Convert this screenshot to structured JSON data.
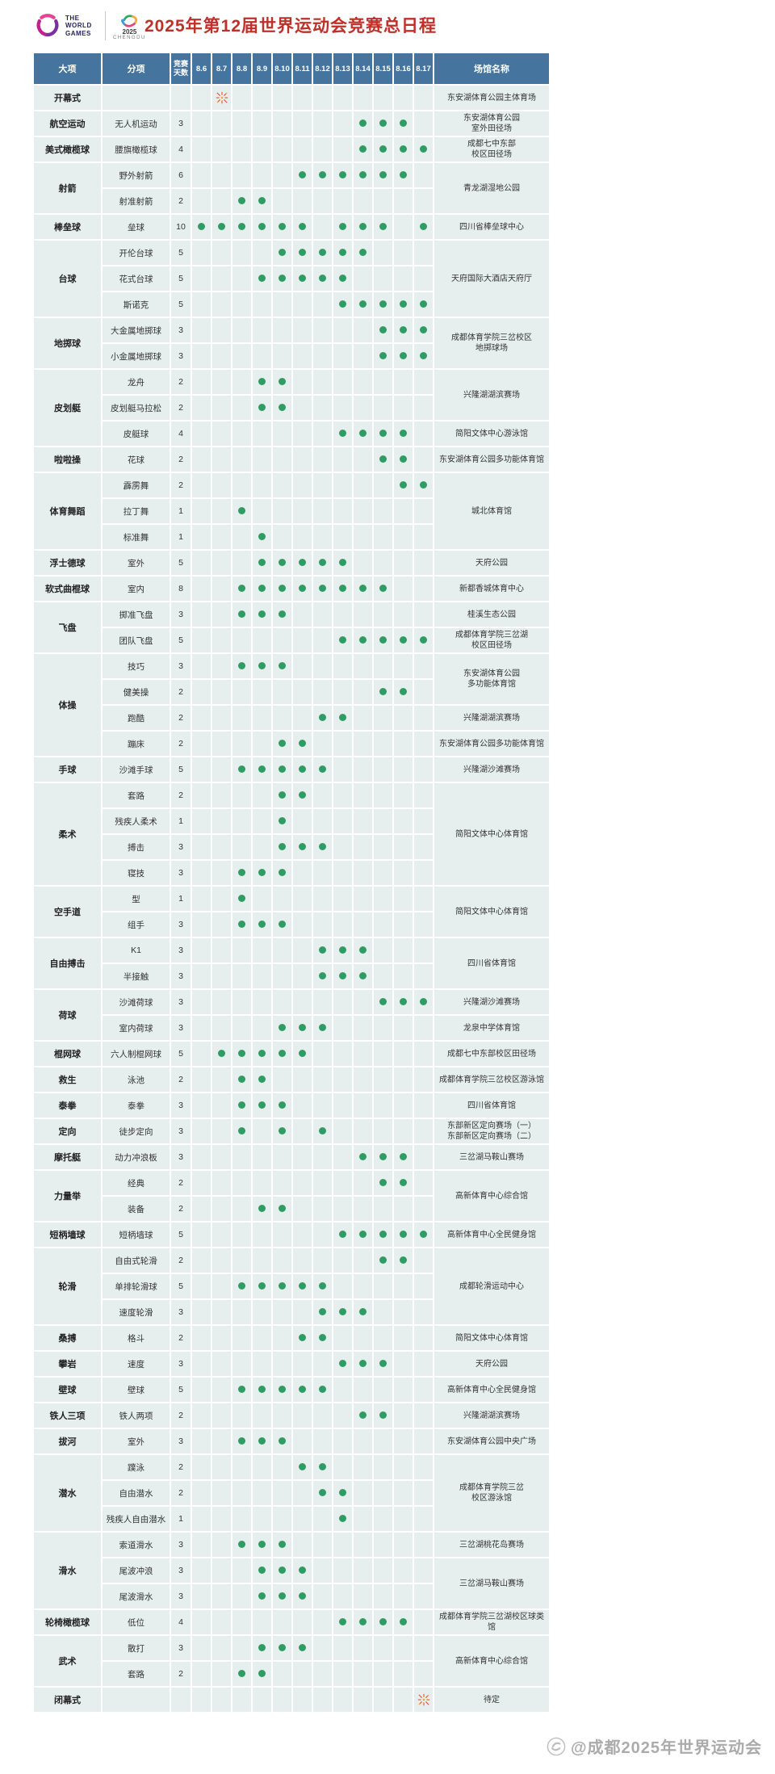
{
  "page": {
    "title": "2025年第12届世界运动会竞赛总日程",
    "watermark": "@成都2025年世界运动会",
    "logos": {
      "world_games": "THE WORLD GAMES",
      "chengdu_year": "2025",
      "chengdu_city": "CHENGDU"
    }
  },
  "table": {
    "headers": {
      "sport": "大项",
      "discipline": "分项",
      "days": "竞赛天数",
      "venue": "场馆名称"
    },
    "dates": [
      "8.6",
      "8.7",
      "8.8",
      "8.9",
      "8.10",
      "8.11",
      "8.12",
      "8.13",
      "8.14",
      "8.15",
      "8.16",
      "8.17"
    ],
    "colors": {
      "header_bg": "#45749E",
      "cell_bg": "#E6EFEE",
      "dot": "#2F9D63",
      "title_red": "#BF3028",
      "fireworks": "#E2582A"
    },
    "groups": [
      {
        "name": "开幕式",
        "rows": [
          {
            "sub": "",
            "days": "",
            "dots": [],
            "fireworks": "8.7"
          }
        ],
        "venues": [
          {
            "text": "东安湖体育公园主体育场",
            "span": 1
          }
        ]
      },
      {
        "name": "航空运动",
        "rows": [
          {
            "sub": "无人机运动",
            "days": "3",
            "dots": [
              "8.14",
              "8.15",
              "8.16"
            ]
          }
        ],
        "venues": [
          {
            "text": "东安湖体育公园\n室外田径场",
            "span": 1
          }
        ]
      },
      {
        "name": "美式橄榄球",
        "rows": [
          {
            "sub": "腰旗橄榄球",
            "days": "4",
            "dots": [
              "8.14",
              "8.15",
              "8.16",
              "8.17"
            ]
          }
        ],
        "venues": [
          {
            "text": "成都七中东部\n校区田径场",
            "span": 1
          }
        ]
      },
      {
        "name": "射箭",
        "rows": [
          {
            "sub": "野外射箭",
            "days": "6",
            "dots": [
              "8.11",
              "8.12",
              "8.13",
              "8.14",
              "8.15",
              "8.16"
            ]
          },
          {
            "sub": "射准射箭",
            "days": "2",
            "dots": [
              "8.8",
              "8.9"
            ]
          }
        ],
        "venues": [
          {
            "text": "青龙湖湿地公园",
            "span": 2
          }
        ]
      },
      {
        "name": "棒垒球",
        "rows": [
          {
            "sub": "垒球",
            "days": "10",
            "dots": [
              "8.6",
              "8.7",
              "8.8",
              "8.9",
              "8.10",
              "8.11",
              "8.13",
              "8.14",
              "8.15",
              "8.17"
            ]
          }
        ],
        "venues": [
          {
            "text": "四川省棒垒球中心",
            "span": 1
          }
        ]
      },
      {
        "name": "台球",
        "rows": [
          {
            "sub": "开伦台球",
            "days": "5",
            "dots": [
              "8.10",
              "8.11",
              "8.12",
              "8.13",
              "8.14"
            ]
          },
          {
            "sub": "花式台球",
            "days": "5",
            "dots": [
              "8.9",
              "8.10",
              "8.11",
              "8.12",
              "8.13"
            ]
          },
          {
            "sub": "斯诺克",
            "days": "5",
            "dots": [
              "8.13",
              "8.14",
              "8.15",
              "8.16",
              "8.17"
            ]
          }
        ],
        "venues": [
          {
            "text": "天府国际大酒店天府厅",
            "span": 3
          }
        ]
      },
      {
        "name": "地掷球",
        "rows": [
          {
            "sub": "大金属地掷球",
            "days": "3",
            "dots": [
              "8.15",
              "8.16",
              "8.17"
            ]
          },
          {
            "sub": "小金属地掷球",
            "days": "3",
            "dots": [
              "8.15",
              "8.16",
              "8.17"
            ]
          }
        ],
        "venues": [
          {
            "text": "成都体育学院三岔校区\n地掷球场",
            "span": 2
          }
        ]
      },
      {
        "name": "皮划艇",
        "rows": [
          {
            "sub": "龙舟",
            "days": "2",
            "dots": [
              "8.9",
              "8.10"
            ]
          },
          {
            "sub": "皮划艇马拉松",
            "days": "2",
            "dots": [
              "8.9",
              "8.10"
            ]
          },
          {
            "sub": "皮艇球",
            "days": "4",
            "dots": [
              "8.13",
              "8.14",
              "8.15",
              "8.16"
            ]
          }
        ],
        "venues": [
          {
            "text": "兴隆湖湖滨赛场",
            "span": 2
          },
          {
            "text": "简阳文体中心游泳馆",
            "span": 1
          }
        ]
      },
      {
        "name": "啦啦操",
        "rows": [
          {
            "sub": "花球",
            "days": "2",
            "dots": [
              "8.15",
              "8.16"
            ]
          }
        ],
        "venues": [
          {
            "text": "东安湖体育公园多功能体育馆",
            "span": 1
          }
        ]
      },
      {
        "name": "体育舞蹈",
        "rows": [
          {
            "sub": "霹雳舞",
            "days": "2",
            "dots": [
              "8.16",
              "8.17"
            ]
          },
          {
            "sub": "拉丁舞",
            "days": "1",
            "dots": [
              "8.8"
            ]
          },
          {
            "sub": "标准舞",
            "days": "1",
            "dots": [
              "8.9"
            ]
          }
        ],
        "venues": [
          {
            "text": "城北体育馆",
            "span": 3
          }
        ]
      },
      {
        "name": "浮士德球",
        "rows": [
          {
            "sub": "室外",
            "days": "5",
            "dots": [
              "8.9",
              "8.10",
              "8.11",
              "8.12",
              "8.13"
            ]
          }
        ],
        "venues": [
          {
            "text": "天府公园",
            "span": 1
          }
        ]
      },
      {
        "name": "软式曲棍球",
        "rows": [
          {
            "sub": "室内",
            "days": "8",
            "dots": [
              "8.8",
              "8.9",
              "8.10",
              "8.11",
              "8.12",
              "8.13",
              "8.14",
              "8.15"
            ]
          }
        ],
        "venues": [
          {
            "text": "新都香城体育中心",
            "span": 1
          }
        ]
      },
      {
        "name": "飞盘",
        "rows": [
          {
            "sub": "掷准飞盘",
            "days": "3",
            "dots": [
              "8.8",
              "8.9",
              "8.10"
            ]
          },
          {
            "sub": "团队飞盘",
            "days": "5",
            "dots": [
              "8.13",
              "8.14",
              "8.15",
              "8.16",
              "8.17"
            ]
          }
        ],
        "venues": [
          {
            "text": "桂溪生态公园",
            "span": 1
          },
          {
            "text": "成都体育学院三岔湖\n校区田径场",
            "span": 1
          }
        ]
      },
      {
        "name": "体操",
        "rows": [
          {
            "sub": "技巧",
            "days": "3",
            "dots": [
              "8.8",
              "8.9",
              "8.10"
            ]
          },
          {
            "sub": "健美操",
            "days": "2",
            "dots": [
              "8.15",
              "8.16"
            ]
          },
          {
            "sub": "跑酷",
            "days": "2",
            "dots": [
              "8.12",
              "8.13"
            ]
          },
          {
            "sub": "蹦床",
            "days": "2",
            "dots": [
              "8.10",
              "8.11"
            ]
          }
        ],
        "venues": [
          {
            "text": "东安湖体育公园\n多功能体育馆",
            "span": 2
          },
          {
            "text": "兴隆湖湖滨赛场",
            "span": 1
          },
          {
            "text": "东安湖体育公园多功能体育馆",
            "span": 1
          }
        ]
      },
      {
        "name": "手球",
        "rows": [
          {
            "sub": "沙滩手球",
            "days": "5",
            "dots": [
              "8.8",
              "8.9",
              "8.10",
              "8.11",
              "8.12"
            ]
          }
        ],
        "venues": [
          {
            "text": "兴隆湖沙滩赛场",
            "span": 1
          }
        ]
      },
      {
        "name": "柔术",
        "rows": [
          {
            "sub": "套路",
            "days": "2",
            "dots": [
              "8.10",
              "8.11"
            ]
          },
          {
            "sub": "残疾人柔术",
            "days": "1",
            "dots": [
              "8.10"
            ]
          },
          {
            "sub": "搏击",
            "days": "3",
            "dots": [
              "8.10",
              "8.11",
              "8.12"
            ]
          },
          {
            "sub": "寝技",
            "days": "3",
            "dots": [
              "8.8",
              "8.9",
              "8.10"
            ]
          }
        ],
        "venues": [
          {
            "text": "简阳文体中心体育馆",
            "span": 4
          }
        ]
      },
      {
        "name": "空手道",
        "rows": [
          {
            "sub": "型",
            "days": "1",
            "dots": [
              "8.8"
            ]
          },
          {
            "sub": "组手",
            "days": "3",
            "dots": [
              "8.8",
              "8.9",
              "8.10"
            ]
          }
        ],
        "venues": [
          {
            "text": "简阳文体中心体育馆",
            "span": 2
          }
        ]
      },
      {
        "name": "自由搏击",
        "rows": [
          {
            "sub": "K1",
            "days": "3",
            "dots": [
              "8.12",
              "8.13",
              "8.14"
            ]
          },
          {
            "sub": "半接触",
            "days": "3",
            "dots": [
              "8.12",
              "8.13",
              "8.14"
            ]
          }
        ],
        "venues": [
          {
            "text": "四川省体育馆",
            "span": 2
          }
        ]
      },
      {
        "name": "荷球",
        "rows": [
          {
            "sub": "沙滩荷球",
            "days": "3",
            "dots": [
              "8.15",
              "8.16",
              "8.17"
            ]
          },
          {
            "sub": "室内荷球",
            "days": "3",
            "dots": [
              "8.10",
              "8.11",
              "8.12"
            ]
          }
        ],
        "venues": [
          {
            "text": "兴隆湖沙滩赛场",
            "span": 1
          },
          {
            "text": "龙泉中学体育馆",
            "span": 1
          }
        ]
      },
      {
        "name": "棍网球",
        "rows": [
          {
            "sub": "六人制棍网球",
            "days": "5",
            "dots": [
              "8.7",
              "8.8",
              "8.9",
              "8.10",
              "8.11"
            ]
          }
        ],
        "venues": [
          {
            "text": "成都七中东部校区田径场",
            "span": 1
          }
        ]
      },
      {
        "name": "救生",
        "rows": [
          {
            "sub": "泳池",
            "days": "2",
            "dots": [
              "8.8",
              "8.9"
            ]
          }
        ],
        "venues": [
          {
            "text": "成都体育学院三岔校区游泳馆",
            "span": 1
          }
        ]
      },
      {
        "name": "泰拳",
        "rows": [
          {
            "sub": "泰拳",
            "days": "3",
            "dots": [
              "8.8",
              "8.9",
              "8.10"
            ]
          }
        ],
        "venues": [
          {
            "text": "四川省体育馆",
            "span": 1
          }
        ]
      },
      {
        "name": "定向",
        "rows": [
          {
            "sub": "徒步定向",
            "days": "3",
            "dots": [
              "8.8",
              "8.10",
              "8.12"
            ]
          }
        ],
        "venues": [
          {
            "text": "东部新区定向赛场（一）\n东部新区定向赛场（二）",
            "span": 1
          }
        ]
      },
      {
        "name": "摩托艇",
        "rows": [
          {
            "sub": "动力冲浪板",
            "days": "3",
            "dots": [
              "8.14",
              "8.15",
              "8.16"
            ]
          }
        ],
        "venues": [
          {
            "text": "三岔湖马鞍山赛场",
            "span": 1
          }
        ]
      },
      {
        "name": "力量举",
        "rows": [
          {
            "sub": "经典",
            "days": "2",
            "dots": [
              "8.15",
              "8.16"
            ]
          },
          {
            "sub": "装备",
            "days": "2",
            "dots": [
              "8.9",
              "8.10"
            ]
          }
        ],
        "venues": [
          {
            "text": "高新体育中心综合馆",
            "span": 2
          }
        ]
      },
      {
        "name": "短柄墙球",
        "rows": [
          {
            "sub": "短柄墙球",
            "days": "5",
            "dots": [
              "8.13",
              "8.14",
              "8.15",
              "8.16",
              "8.17"
            ]
          }
        ],
        "venues": [
          {
            "text": "高新体育中心全民健身馆",
            "span": 1
          }
        ]
      },
      {
        "name": "轮滑",
        "rows": [
          {
            "sub": "自由式轮滑",
            "days": "2",
            "dots": [
              "8.15",
              "8.16"
            ]
          },
          {
            "sub": "单排轮滑球",
            "days": "5",
            "dots": [
              "8.8",
              "8.9",
              "8.10",
              "8.11",
              "8.12"
            ]
          },
          {
            "sub": "速度轮滑",
            "days": "3",
            "dots": [
              "8.12",
              "8.13",
              "8.14"
            ]
          }
        ],
        "venues": [
          {
            "text": "成都轮滑运动中心",
            "span": 3
          }
        ]
      },
      {
        "name": "桑搏",
        "rows": [
          {
            "sub": "格斗",
            "days": "2",
            "dots": [
              "8.11",
              "8.12"
            ]
          }
        ],
        "venues": [
          {
            "text": "简阳文体中心体育馆",
            "span": 1
          }
        ]
      },
      {
        "name": "攀岩",
        "rows": [
          {
            "sub": "速度",
            "days": "3",
            "dots": [
              "8.13",
              "8.14",
              "8.15"
            ]
          }
        ],
        "venues": [
          {
            "text": "天府公园",
            "span": 1
          }
        ]
      },
      {
        "name": "壁球",
        "rows": [
          {
            "sub": "壁球",
            "days": "5",
            "dots": [
              "8.8",
              "8.9",
              "8.10",
              "8.11",
              "8.12"
            ]
          }
        ],
        "venues": [
          {
            "text": "高新体育中心全民健身馆",
            "span": 1
          }
        ]
      },
      {
        "name": "铁人三项",
        "rows": [
          {
            "sub": "铁人两项",
            "days": "2",
            "dots": [
              "8.14",
              "8.15"
            ]
          }
        ],
        "venues": [
          {
            "text": "兴隆湖湖滨赛场",
            "span": 1
          }
        ]
      },
      {
        "name": "拔河",
        "rows": [
          {
            "sub": "室外",
            "days": "3",
            "dots": [
              "8.8",
              "8.9",
              "8.10"
            ]
          }
        ],
        "venues": [
          {
            "text": "东安湖体育公园中央广场",
            "span": 1
          }
        ]
      },
      {
        "name": "潜水",
        "rows": [
          {
            "sub": "蹼泳",
            "days": "2",
            "dots": [
              "8.11",
              "8.12"
            ]
          },
          {
            "sub": "自由潜水",
            "days": "2",
            "dots": [
              "8.12",
              "8.13"
            ]
          },
          {
            "sub": "残疾人自由潜水",
            "days": "1",
            "dots": [
              "8.13"
            ]
          }
        ],
        "venues": [
          {
            "text": "成都体育学院三岔\n校区游泳馆",
            "span": 3
          }
        ]
      },
      {
        "name": "滑水",
        "rows": [
          {
            "sub": "索道滑水",
            "days": "3",
            "dots": [
              "8.8",
              "8.9",
              "8.10"
            ]
          },
          {
            "sub": "尾波冲浪",
            "days": "3",
            "dots": [
              "8.9",
              "8.10",
              "8.11"
            ]
          },
          {
            "sub": "尾波滑水",
            "days": "3",
            "dots": [
              "8.9",
              "8.10",
              "8.11"
            ]
          }
        ],
        "venues": [
          {
            "text": "三岔湖桃花岛赛场",
            "span": 1
          },
          {
            "text": "三岔湖马鞍山赛场",
            "span": 2
          }
        ]
      },
      {
        "name": "轮椅橄榄球",
        "rows": [
          {
            "sub": "低位",
            "days": "4",
            "dots": [
              "8.13",
              "8.14",
              "8.15",
              "8.16"
            ]
          }
        ],
        "venues": [
          {
            "text": "成都体育学院三岔湖校区球类馆",
            "span": 1
          }
        ]
      },
      {
        "name": "武术",
        "rows": [
          {
            "sub": "散打",
            "days": "3",
            "dots": [
              "8.9",
              "8.10",
              "8.11"
            ]
          },
          {
            "sub": "套路",
            "days": "2",
            "dots": [
              "8.8",
              "8.9"
            ]
          }
        ],
        "venues": [
          {
            "text": "高新体育中心综合馆",
            "span": 2
          }
        ]
      },
      {
        "name": "闭幕式",
        "rows": [
          {
            "sub": "",
            "days": "",
            "dots": [],
            "fireworks": "8.17"
          }
        ],
        "venues": [
          {
            "text": "待定",
            "span": 1
          }
        ]
      }
    ]
  }
}
